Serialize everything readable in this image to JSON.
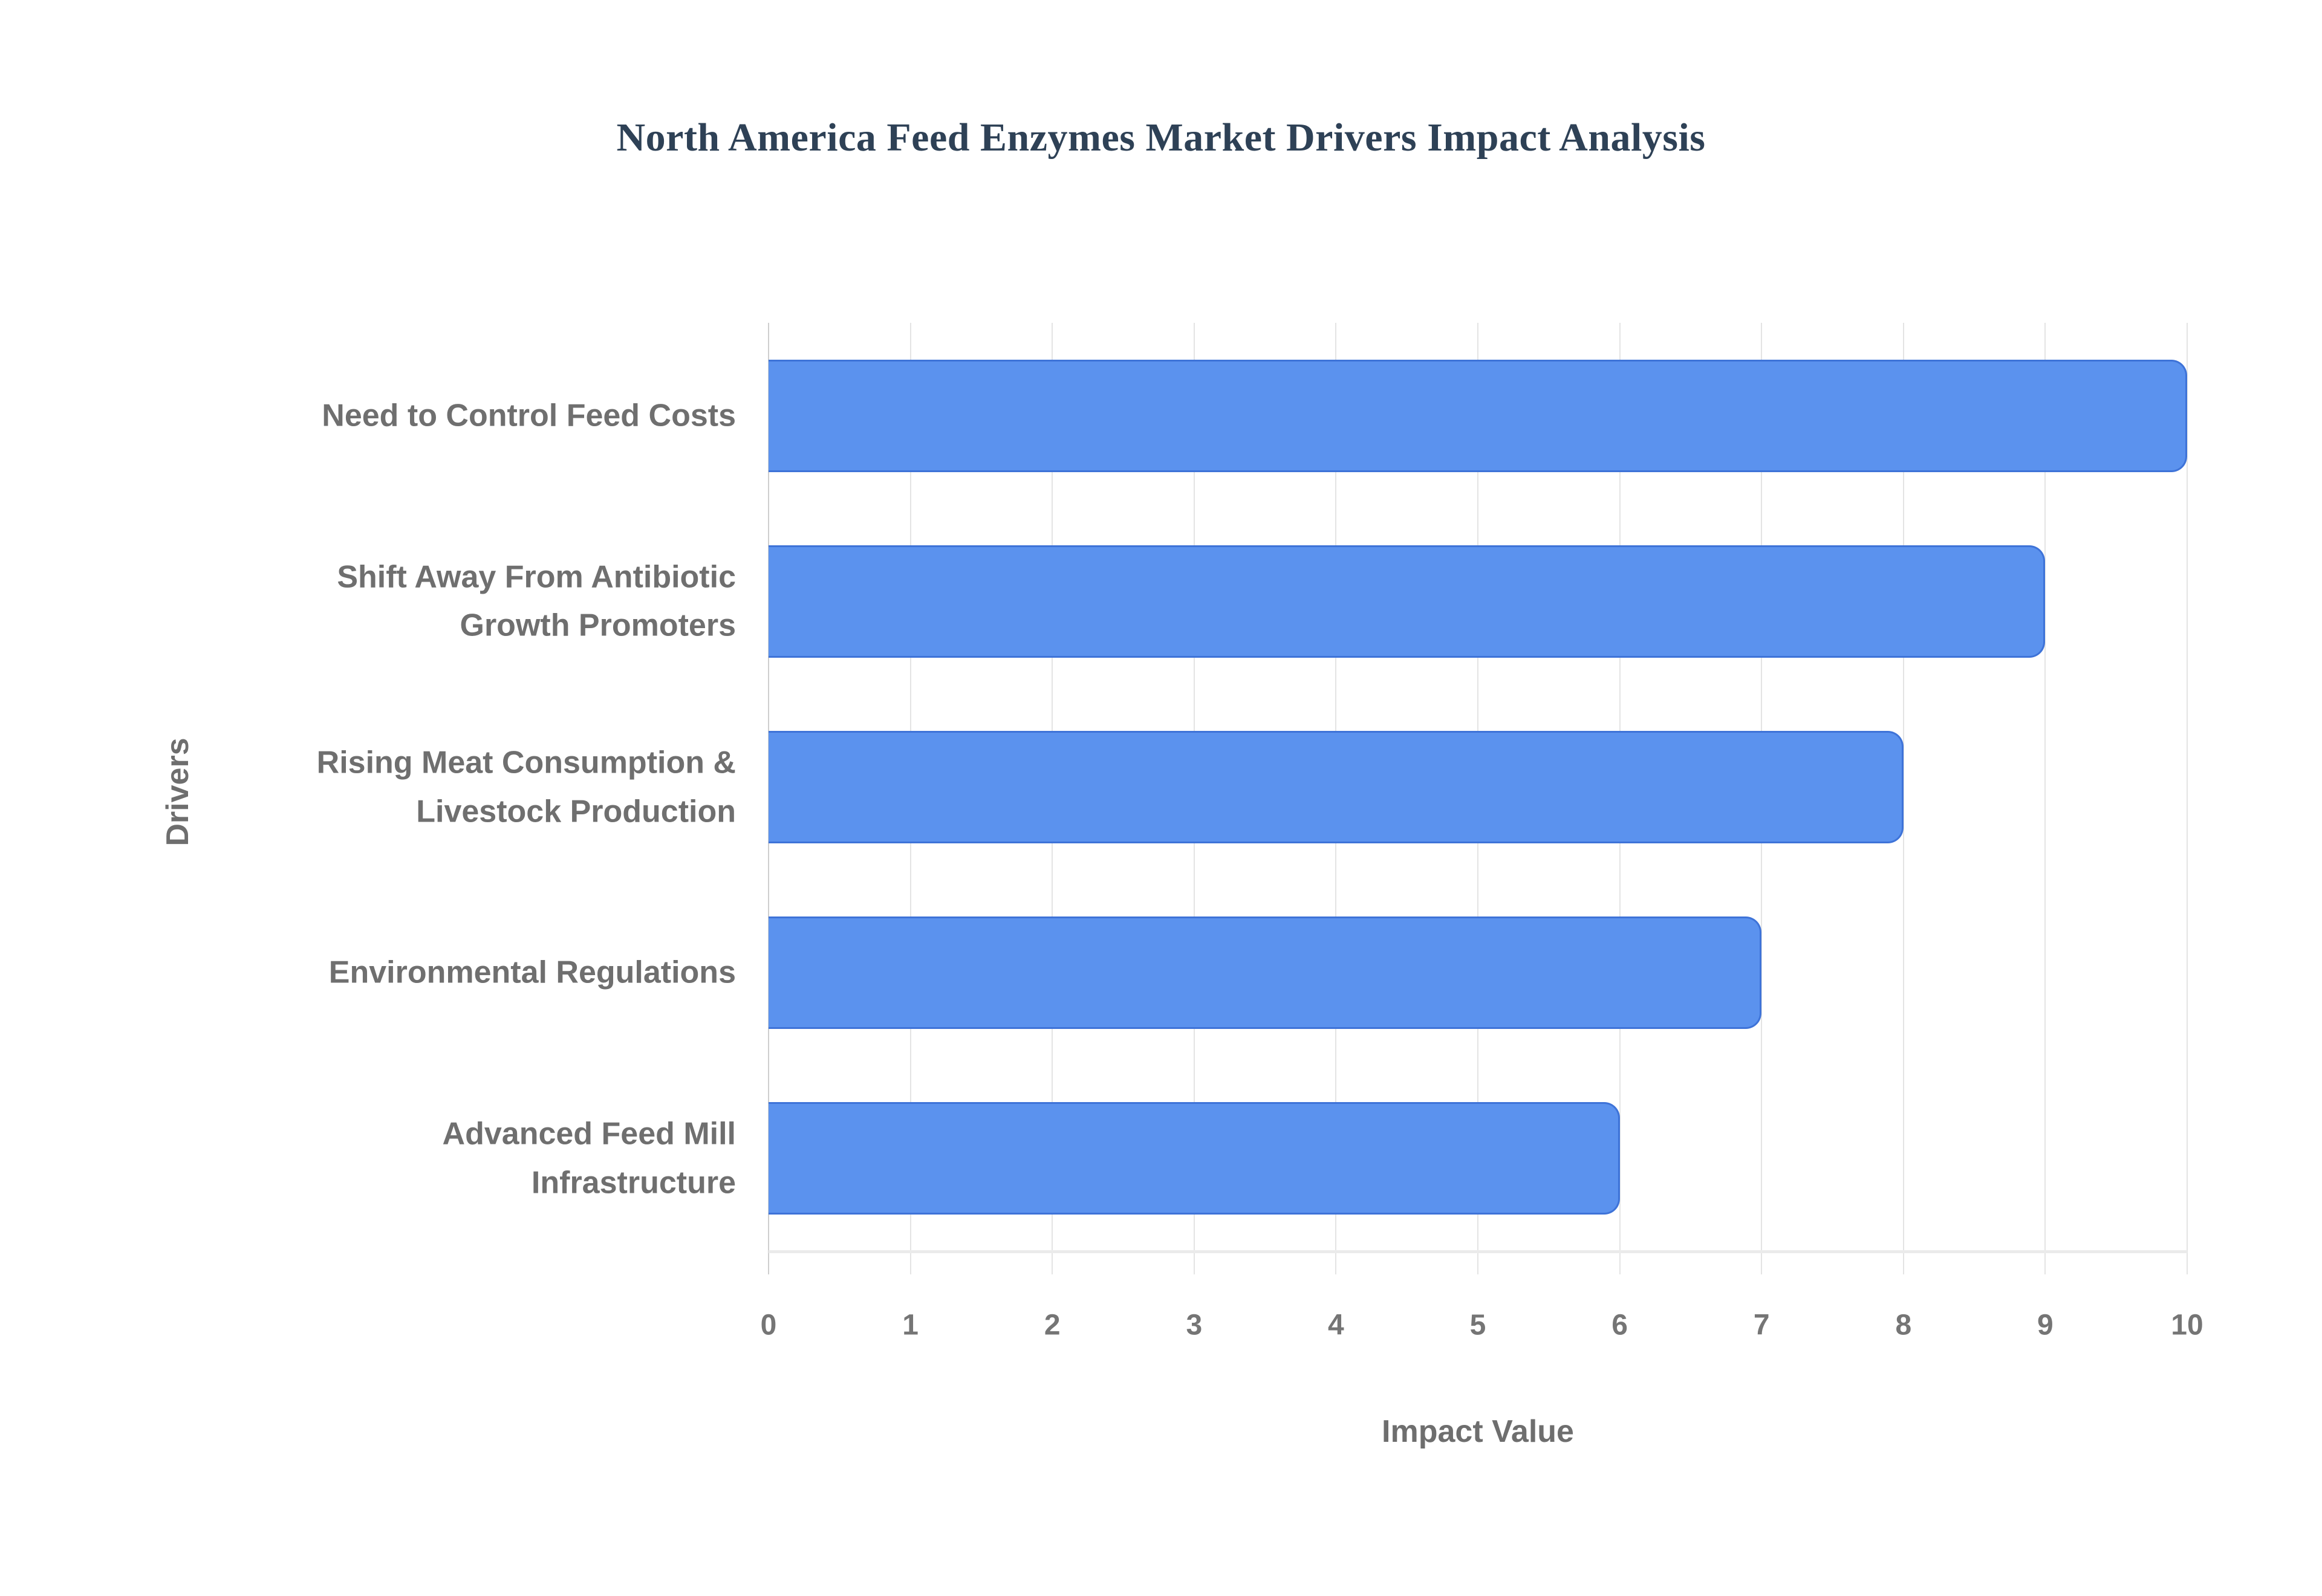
{
  "title": "North America Feed Enzymes Market Drivers Impact Analysis",
  "chart_data": {
    "type": "bar",
    "orientation": "horizontal",
    "title": "North America Feed Enzymes Market Drivers Impact Analysis",
    "categories": [
      "Need to Control Feed Costs",
      "Shift Away From Antibiotic Growth Promoters",
      "Rising Meat Consumption & Livestock Production",
      "Environmental Regulations",
      "Advanced Feed Mill Infrastructure"
    ],
    "values": [
      10,
      9,
      8,
      7,
      6
    ],
    "xlabel": "Impact Value",
    "ylabel": "Drivers",
    "xlim": [
      0,
      10
    ],
    "xticks": [
      0,
      1,
      2,
      3,
      4,
      5,
      6,
      7,
      8,
      9,
      10
    ],
    "grid": true,
    "legend": "none",
    "bar_color": "#5b92ee",
    "bar_border_color": "#3e73d8",
    "gridline_color": "#e4e4e4",
    "label_color": "#6f6f6f",
    "title_color": "#2e4156",
    "background_color": "#ffffff"
  }
}
